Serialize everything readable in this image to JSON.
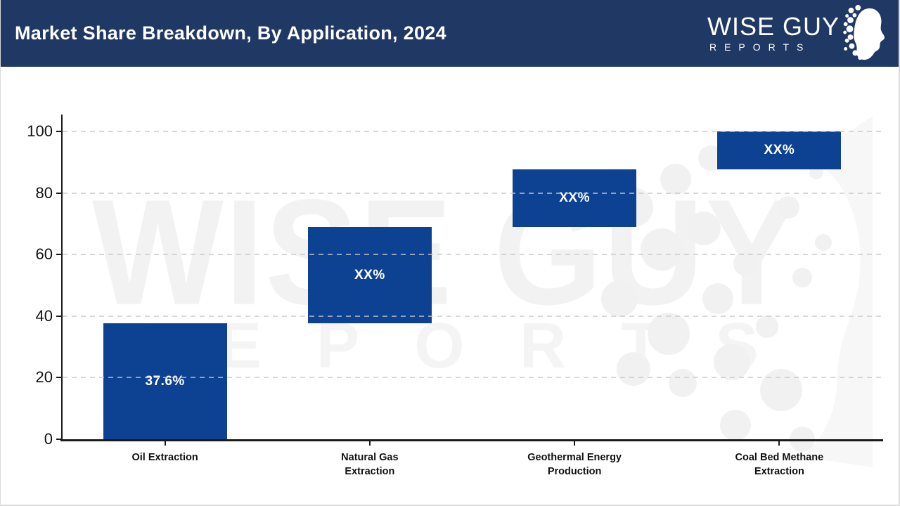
{
  "header": {
    "title": "Market Share Breakdown, By Application, 2024",
    "logo": {
      "wordmark": "WISE GUY",
      "subtitle": "REPORTS"
    }
  },
  "watermark": {
    "wordmark": "WISE GUY",
    "subtitle": "REPORTS"
  },
  "colors": {
    "header_bg": "#203864",
    "bar": "#0d4192",
    "bar_label": "#ffffff",
    "gridline": "#c9c9c9",
    "axis": "#1a1a1a",
    "tick_label": "#111111",
    "watermark": "#f2f2f2"
  },
  "chart_data": {
    "type": "bar",
    "subtype": "floating-waterfall",
    "title": "Market Share Breakdown, By Application, 2024",
    "xlabel": "",
    "ylabel": "",
    "grid": true,
    "legend": false,
    "yticks": [
      0,
      20,
      40,
      60,
      80,
      100
    ],
    "ylim": [
      0,
      105.5
    ],
    "categories": [
      [
        "Oil Extraction"
      ],
      [
        "Natural Gas",
        "Extraction"
      ],
      [
        "Geothermal Energy",
        "Production"
      ],
      [
        "Coal Bed Methane",
        "Extraction"
      ]
    ],
    "segments": [
      {
        "category": "Oil Extraction",
        "label": "37.6%",
        "start": 0,
        "end": 37.6
      },
      {
        "category": "Natural Gas Extraction",
        "label": "XX%",
        "start": 37.6,
        "end": 68.9
      },
      {
        "category": "Geothermal Energy Production",
        "label": "XX%",
        "start": 68.9,
        "end": 87.7
      },
      {
        "category": "Coal Bed Methane Extraction",
        "label": "XX%",
        "start": 87.7,
        "end": 100
      }
    ]
  }
}
